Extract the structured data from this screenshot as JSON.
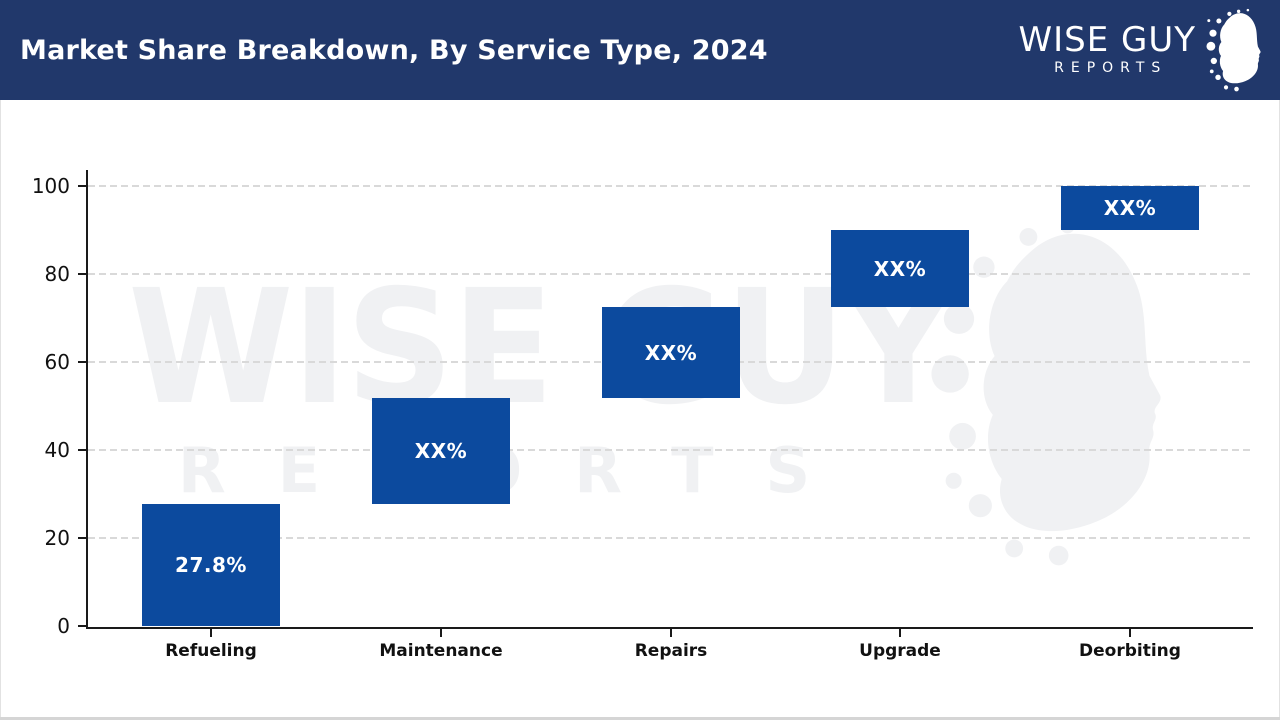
{
  "header": {
    "title": "Market Share Breakdown, By Service Type, 2024",
    "logo": {
      "line1": "WISE GUY",
      "line2": "REPORTS"
    }
  },
  "watermark": {
    "line1": "WISE GUY",
    "line2": "REPORTS"
  },
  "chart_data": {
    "type": "bar",
    "subtype": "floating-segment-waterfall",
    "title": "Market Share Breakdown, By Service Type, 2024",
    "categories": [
      "Refueling",
      "Maintenance",
      "Repairs",
      "Upgrade",
      "Deorbiting"
    ],
    "segments": [
      {
        "category": "Refueling",
        "start": 0,
        "end": 27.8,
        "label": "27.8%"
      },
      {
        "category": "Maintenance",
        "start": 27.8,
        "end": 51.8,
        "label": "XX%"
      },
      {
        "category": "Repairs",
        "start": 51.8,
        "end": 72.5,
        "label": "XX%"
      },
      {
        "category": "Upgrade",
        "start": 72.5,
        "end": 90,
        "label": "XX%"
      },
      {
        "category": "Deorbiting",
        "start": 90,
        "end": 100,
        "label": "XX%"
      }
    ],
    "yticks": [
      0,
      20,
      40,
      60,
      80,
      100
    ],
    "ylim": [
      0,
      103
    ],
    "xlabel": "",
    "ylabel": "",
    "legend": "none",
    "grid": {
      "horizontal": true,
      "style": "dashed",
      "color": "#D9D9D9"
    },
    "bar_color": "#0C4A9E",
    "bar_label_color": "#FFFFFF",
    "axis_color": "#1A1A1A"
  },
  "colors": {
    "header_bg": "#21386B",
    "background": "#FFFFFF",
    "watermark": "#F0F1F3"
  }
}
